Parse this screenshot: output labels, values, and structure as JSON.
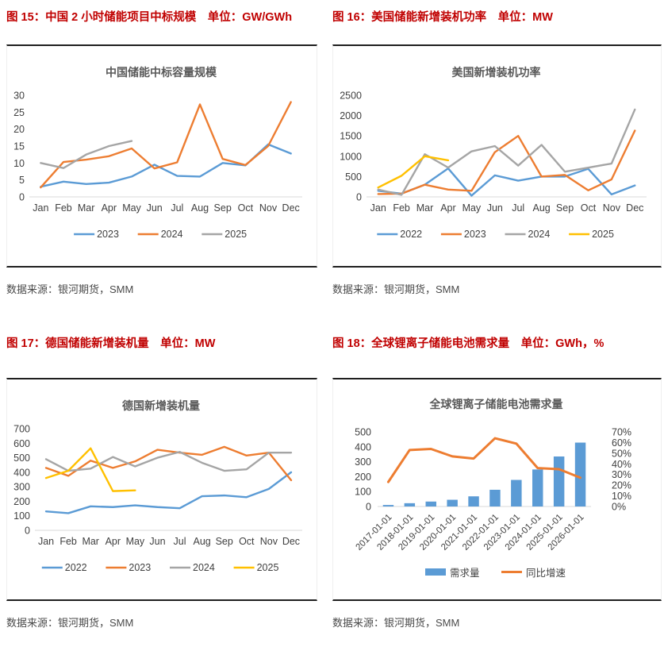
{
  "figures": [
    {
      "label": "图 15：中国 2 小时储能项目中标规模　单位：GW/GWh",
      "source": "数据来源：银河期货，SMM"
    },
    {
      "label": "图 16：美国储能新增装机功率　单位：MW",
      "source": "数据来源：银河期货，SMM"
    },
    {
      "label": "图 17：德国储能新增装机量　单位：MW",
      "source": "数据来源：银河期货，SMM"
    },
    {
      "label": "图 18：全球锂离子储能电池需求量　单位：GWh，%",
      "source": "数据来源：银河期货，SMM"
    }
  ],
  "colors": {
    "title_red": "#C00000",
    "blue": "#5B9BD5",
    "orange": "#ED7D31",
    "gray": "#A5A5A5",
    "yellow": "#FFC000",
    "axis_text": "#404040",
    "chart_title": "#595959",
    "baseline": "#D9D9D9"
  },
  "chart_data": [
    {
      "type": "line",
      "title": "中国储能中标容量规模",
      "categories": [
        "Jan",
        "Feb",
        "Mar",
        "Apr",
        "May",
        "Jun",
        "Jul",
        "Aug",
        "Sep",
        "Oct",
        "Nov",
        "Dec"
      ],
      "series": [
        {
          "name": "2023",
          "color": "#5B9BD5",
          "values": [
            3,
            4.5,
            3.8,
            4.2,
            6,
            9.5,
            6.2,
            6,
            10,
            9.3,
            15.5,
            12.8
          ]
        },
        {
          "name": "2024",
          "color": "#ED7D31",
          "values": [
            2.8,
            10.3,
            11,
            12,
            14.3,
            8.4,
            10.2,
            27.3,
            11.2,
            9.4,
            15,
            28
          ]
        },
        {
          "name": "2025",
          "color": "#A5A5A5",
          "values": [
            10,
            8.5,
            12.5,
            15,
            16.5
          ]
        }
      ],
      "ylim": [
        0,
        30
      ],
      "yticks": [
        0,
        5,
        10,
        15,
        20,
        25,
        30
      ],
      "grid": false,
      "legend_position": "bottom"
    },
    {
      "type": "line",
      "title": "美国新增装机功率",
      "categories": [
        "Jan",
        "Feb",
        "Mar",
        "Apr",
        "May",
        "Jun",
        "Jul",
        "Aug",
        "Sep",
        "Oct",
        "Nov",
        "Dec"
      ],
      "series": [
        {
          "name": "2022",
          "color": "#5B9BD5",
          "values": [
            150,
            80,
            300,
            700,
            30,
            530,
            400,
            500,
            500,
            690,
            60,
            280
          ]
        },
        {
          "name": "2023",
          "color": "#ED7D31",
          "values": [
            70,
            80,
            300,
            180,
            150,
            1100,
            1500,
            500,
            540,
            160,
            430,
            1630
          ]
        },
        {
          "name": "2024",
          "color": "#A5A5A5",
          "values": [
            180,
            50,
            1050,
            720,
            1120,
            1250,
            770,
            1280,
            620,
            720,
            820,
            2150
          ]
        },
        {
          "name": "2025",
          "color": "#FFC000",
          "values": [
            230,
            520,
            1000,
            900
          ]
        }
      ],
      "ylim": [
        0,
        2500
      ],
      "yticks": [
        0,
        500,
        1000,
        1500,
        2000,
        2500
      ],
      "grid": false,
      "legend_position": "bottom"
    },
    {
      "type": "line",
      "title": "德国新增装机量",
      "categories": [
        "Jan",
        "Feb",
        "Mar",
        "Apr",
        "May",
        "Jun",
        "Jul",
        "Aug",
        "Sep",
        "Oct",
        "Nov",
        "Dec"
      ],
      "series": [
        {
          "name": "2022",
          "color": "#5B9BD5",
          "values": [
            130,
            118,
            165,
            160,
            172,
            160,
            152,
            235,
            240,
            228,
            285,
            400
          ]
        },
        {
          "name": "2023",
          "color": "#ED7D31",
          "values": [
            430,
            375,
            480,
            430,
            475,
            555,
            535,
            520,
            575,
            515,
            535,
            345
          ]
        },
        {
          "name": "2024",
          "color": "#A5A5A5",
          "values": [
            490,
            410,
            425,
            505,
            440,
            500,
            540,
            465,
            410,
            420,
            535,
            535
          ]
        },
        {
          "name": "2025",
          "color": "#FFC000",
          "values": [
            360,
            410,
            565,
            270,
            275
          ]
        }
      ],
      "ylim": [
        0,
        700
      ],
      "yticks": [
        0,
        100,
        200,
        300,
        400,
        500,
        600,
        700
      ],
      "grid": false,
      "legend_position": "bottom"
    },
    {
      "type": "combo",
      "title": "全球锂离子储能电池需求量",
      "categories": [
        "2017-01-01",
        "2018-01-01",
        "2019-01-01",
        "2020-01-01",
        "2021-01-01",
        "2022-01-01",
        "2023-01-01",
        "2024-01-01",
        "2025-01-01",
        "2026-01-01"
      ],
      "bar_series": {
        "name": "需求量",
        "color": "#5B9BD5",
        "values": [
          10,
          22,
          33,
          45,
          68,
          112,
          178,
          248,
          335,
          428
        ]
      },
      "line_series": {
        "name": "同比增速",
        "color": "#ED7D31",
        "values_pct": [
          23,
          53,
          54,
          47,
          45,
          64,
          59,
          36,
          35,
          27
        ]
      },
      "ylim_left": [
        0,
        500
      ],
      "yticks_left": [
        0,
        100,
        200,
        300,
        400,
        500
      ],
      "ylim_right_pct": [
        0,
        70
      ],
      "yticks_right": [
        "0%",
        "10%",
        "20%",
        "30%",
        "40%",
        "50%",
        "60%",
        "70%"
      ],
      "grid": false,
      "legend_position": "bottom"
    }
  ]
}
